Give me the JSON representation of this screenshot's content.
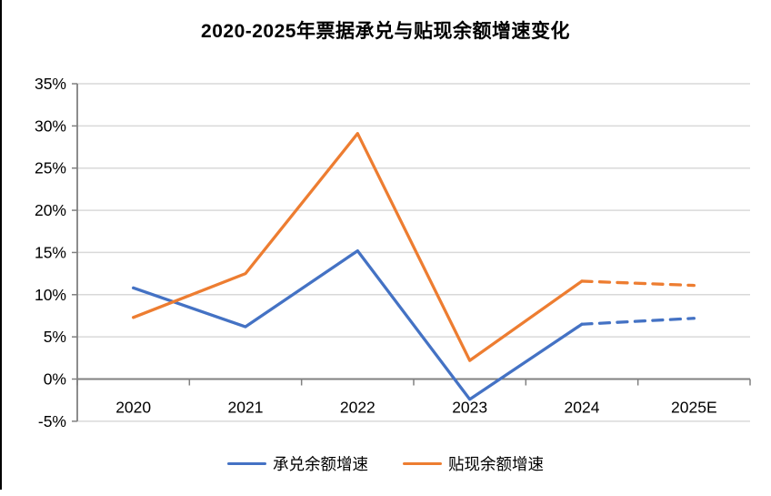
{
  "chart_data": {
    "type": "line",
    "title": "2020-2025年票据承兑与贴现余额增速变化",
    "categories": [
      "2020",
      "2021",
      "2022",
      "2023",
      "2024",
      "2025E"
    ],
    "series": [
      {
        "name": "承兑余额增速",
        "color": "#4472C4",
        "values": [
          10.8,
          6.2,
          15.2,
          -2.4,
          6.5,
          7.2
        ],
        "forecast_from_index": 4,
        "forecast_style": "dashed"
      },
      {
        "name": "贴现余额增速",
        "color": "#ED7D31",
        "values": [
          7.3,
          12.5,
          29.1,
          2.2,
          11.6,
          11.1
        ],
        "forecast_from_index": 4,
        "forecast_style": "dashed"
      }
    ],
    "xlabel": "",
    "ylabel": "",
    "ylim": [
      -5,
      35
    ],
    "y_tick_step": 5,
    "y_tick_format": "percent",
    "y_tick_labels": [
      "-5%",
      "0%",
      "5%",
      "10%",
      "15%",
      "20%",
      "25%",
      "30%",
      "35%"
    ],
    "grid": true,
    "legend_position": "bottom",
    "colors": {
      "gridline": "#D9D9D9",
      "axis": "#808080",
      "text": "#000000"
    }
  }
}
